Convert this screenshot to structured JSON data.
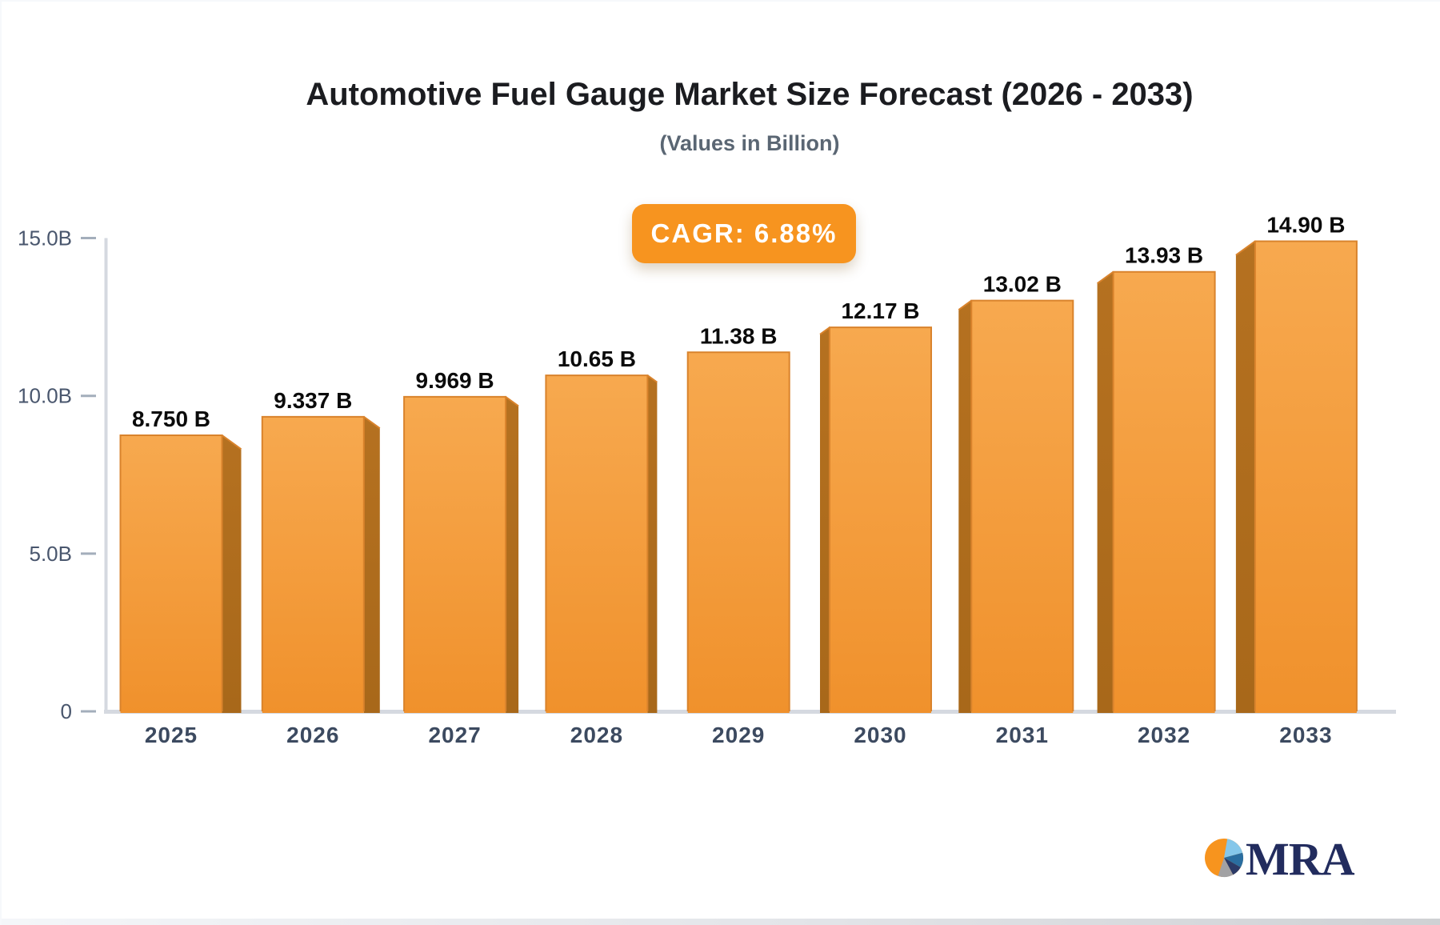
{
  "header": {
    "title": "Automotive Fuel Gauge Market Size Forecast (2026 - 2033)",
    "subtitle": "(Values in Billion)"
  },
  "badge": {
    "label": "CAGR: 6.88%",
    "bg": "#f7941f",
    "text_color": "#ffffff"
  },
  "chart_data": {
    "type": "bar",
    "title": "Automotive Fuel Gauge Market Size Forecast (2026 - 2033)",
    "subtitle": "(Values in Billion)",
    "cagr": "6.88%",
    "categories": [
      "2025",
      "2026",
      "2027",
      "2028",
      "2029",
      "2030",
      "2031",
      "2032",
      "2033"
    ],
    "values": [
      8.75,
      9.337,
      9.969,
      10.65,
      11.38,
      12.17,
      13.02,
      13.93,
      14.9
    ],
    "value_labels": [
      "8.750 B",
      "9.337 B",
      "9.969 B",
      "10.65 B",
      "11.38 B",
      "12.17 B",
      "13.02 B",
      "13.93 B",
      "14.90 B"
    ],
    "xlabel": "",
    "ylabel": "",
    "ylim": [
      0,
      15
    ],
    "yticks": [
      {
        "value": 0,
        "label": "0"
      },
      {
        "value": 5,
        "label": "5.0B"
      },
      {
        "value": 10,
        "label": "10.0B"
      },
      {
        "value": 15,
        "label": "15.0B"
      }
    ],
    "grid": false,
    "legend": "none"
  },
  "chart_style": {
    "bar_face_top": "#f7a94f",
    "bar_face_bottom": "#f0912c",
    "bar_edge": "#d9832c",
    "bar_side": "#b06d1d",
    "axis_line": "#d5d9e0",
    "tick_mark": "#a3aebb",
    "tick_label_color": "#49566d",
    "year_label_color": "#3c4a60",
    "value_label_color": "#0b0b0b"
  },
  "logo": {
    "text": "MRA",
    "text_color": "#222c5e",
    "pie": {
      "orange": "#f7941e",
      "light_blue": "#85c7ea",
      "medium_blue": "#2a6ea0",
      "navy": "#2b3a67",
      "gray": "#a2a2a4"
    }
  }
}
